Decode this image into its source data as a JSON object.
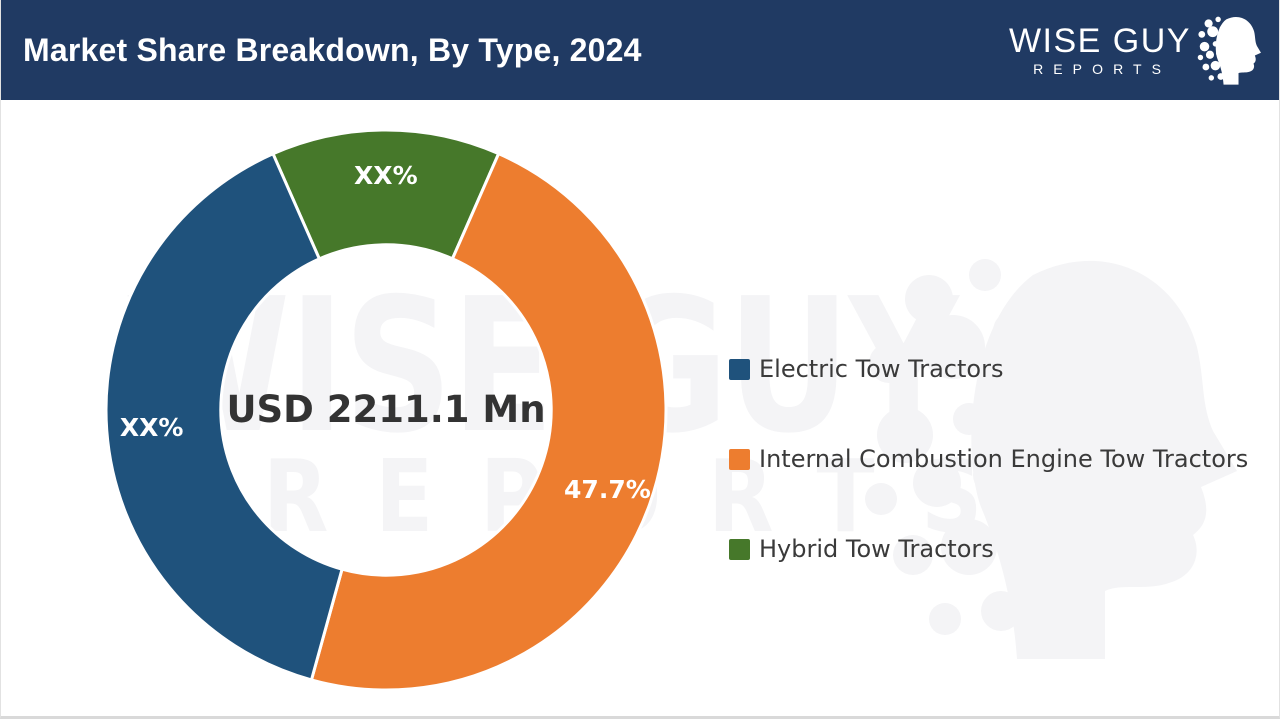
{
  "header": {
    "title": "Market Share Breakdown, By Type, 2024",
    "bg_color": "#203a63",
    "logo": {
      "line1": "WISE GUY",
      "line2": "REPORTS"
    }
  },
  "watermark": {
    "line1": "WISE GUY",
    "line2": "REPORTS"
  },
  "chart_data": {
    "type": "pie",
    "subtype": "donut",
    "title": "Market Share Breakdown, By Type, 2024",
    "center_label": "USD 2211.1 Mn",
    "units": "percent of market share",
    "rotation_deg": -23.8,
    "donut_hole_ratio": 0.59,
    "legend_position": "right",
    "grid": false,
    "slices": [
      {
        "label": "Electric Tow Tractors",
        "value": 39.1,
        "display_value": "XX%",
        "color": "#1f527c"
      },
      {
        "label": "Internal Combustion Engine Tow Tractors",
        "value": 47.7,
        "display_value": "47.7%",
        "color": "#ed7d2f"
      },
      {
        "label": "Hybrid Tow Tractors",
        "value": 13.2,
        "display_value": "XX%",
        "color": "#46782a"
      }
    ]
  }
}
